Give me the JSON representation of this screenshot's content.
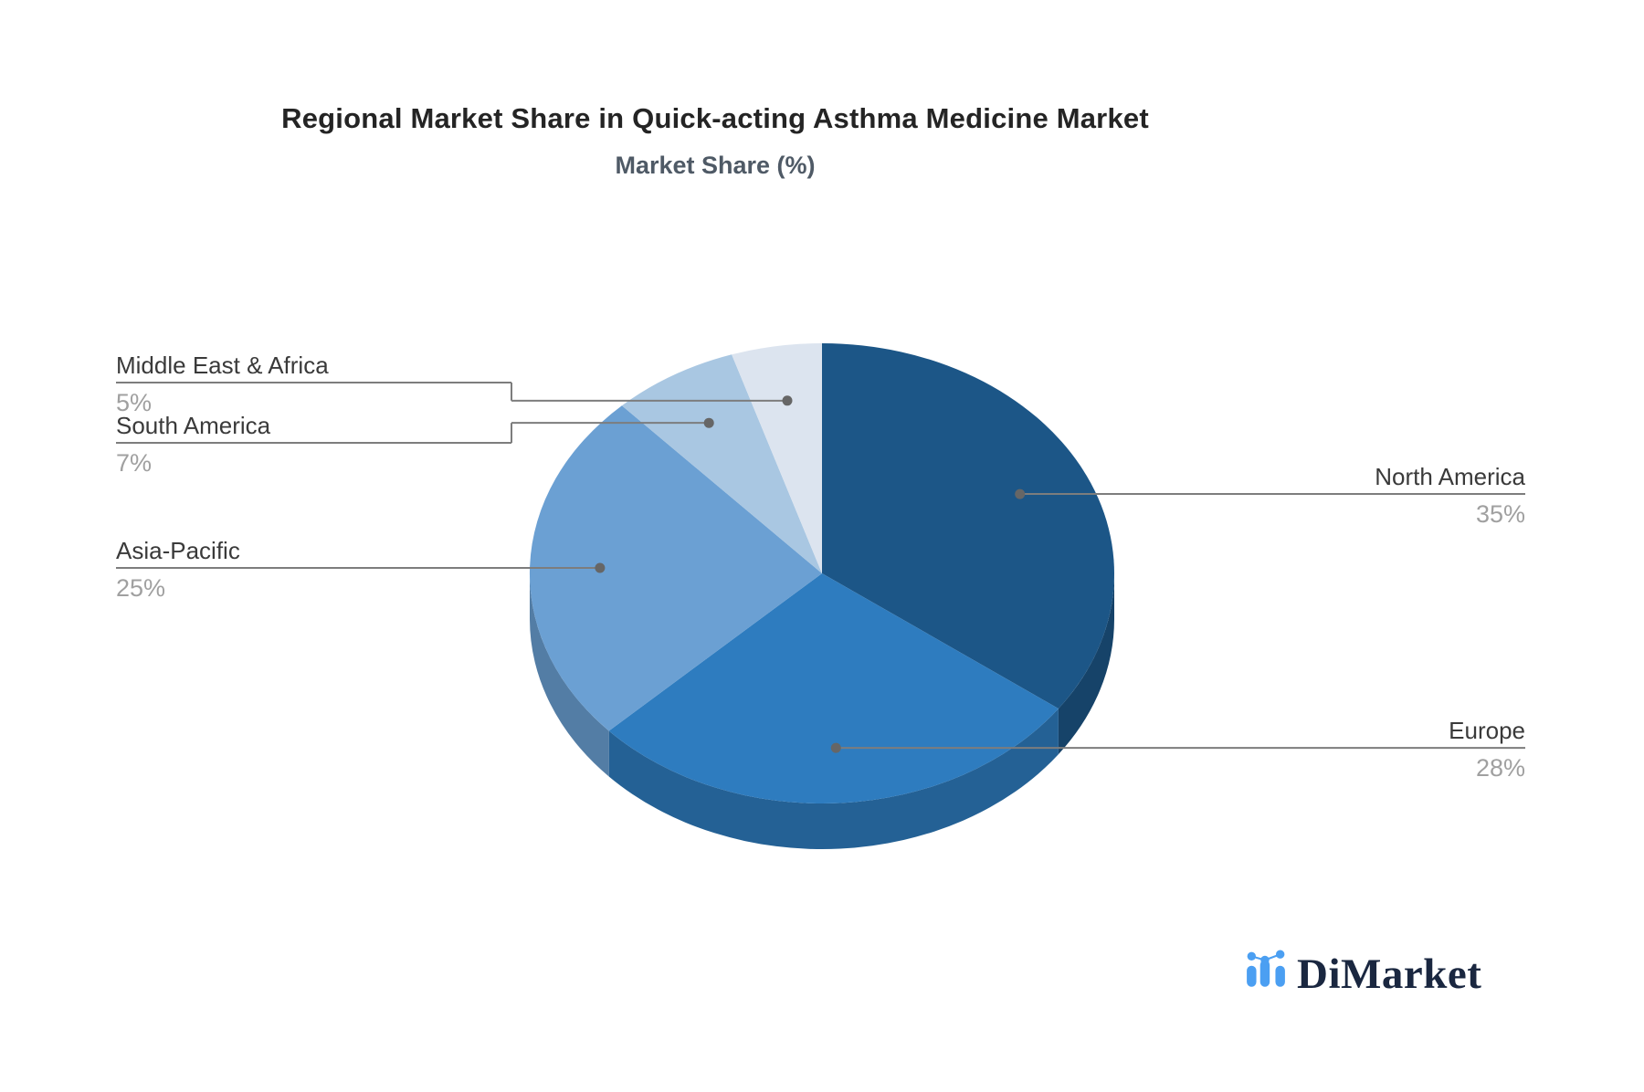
{
  "page": {
    "background": "#ffffff"
  },
  "header": {
    "title": "Regional Market Share in Quick-acting Asthma Medicine Market",
    "subtitle": "Market Share (%)"
  },
  "chart_data": {
    "type": "pie",
    "style": "pie-3d",
    "title": "Regional Market Share in Quick-acting Asthma Medicine Market",
    "subtitle": "Market Share (%)",
    "unit": "%",
    "direction": "clockwise",
    "start_angle": "12-oclock",
    "legend": "none",
    "series": [
      {
        "name": "North America",
        "value": 35,
        "pct_label": "35%",
        "color": "#1C5687",
        "label_side": "right"
      },
      {
        "name": "Europe",
        "value": 28,
        "pct_label": "28%",
        "color": "#2E7CBF",
        "label_side": "right"
      },
      {
        "name": "Asia-Pacific",
        "value": 25,
        "pct_label": "25%",
        "color": "#6BA0D3",
        "label_side": "left"
      },
      {
        "name": "South America",
        "value": 7,
        "pct_label": "7%",
        "color": "#A9C7E2",
        "label_side": "left-elbow"
      },
      {
        "name": "Middle East & Africa",
        "value": 5,
        "pct_label": "5%",
        "color": "#DCE4EF",
        "label_side": "left-elbow"
      }
    ],
    "leader_line_color": "#7d7d7d",
    "leader_dot_color": "#666666",
    "label_name_color": "#3a3a3a",
    "label_pct_color": "#a0a0a0"
  },
  "brand": {
    "name": "DiMarket",
    "icon": "dimarket-bars-logo-icon",
    "icon_color": "#4B9FF2",
    "text_color": "#1A2740"
  }
}
